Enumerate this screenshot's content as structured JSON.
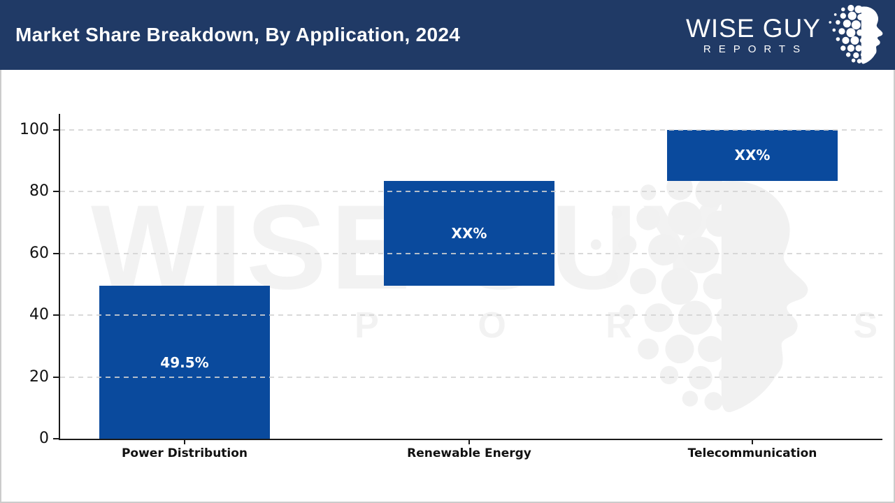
{
  "header": {
    "title": "Market Share Breakdown, By Application, 2024",
    "bg_color": "#203a66",
    "logo": {
      "line1": "WISE GUY",
      "line2": "REPORTS"
    }
  },
  "watermark": {
    "line1": "WISE GUY",
    "line2": "R E P O R T S"
  },
  "chart_data": {
    "type": "bar",
    "subtype": "stacked-waterfall",
    "title": "Market Share Breakdown, By Application, 2024",
    "categories": [
      "Power Distribution",
      "Renewable Energy",
      "Telecommunication"
    ],
    "bars": [
      {
        "category": "Power Distribution",
        "start": 0,
        "end": 49.5,
        "label": "49.5%"
      },
      {
        "category": "Renewable Energy",
        "start": 49.5,
        "end": 83.5,
        "label": "XX%"
      },
      {
        "category": "Telecommunication",
        "start": 83.5,
        "end": 100,
        "label": "XX%"
      }
    ],
    "xlabel": "",
    "ylabel": "",
    "ylim": [
      0,
      100
    ],
    "yticks": [
      0,
      20,
      40,
      60,
      80,
      100
    ],
    "grid": "horizontal-dashed",
    "legend": "none",
    "bar_color": "#0a4a9d",
    "bar_label_color": "#ffffff",
    "axis_color": "#1a1a1a",
    "gridline_color": "#d2d2d2"
  }
}
